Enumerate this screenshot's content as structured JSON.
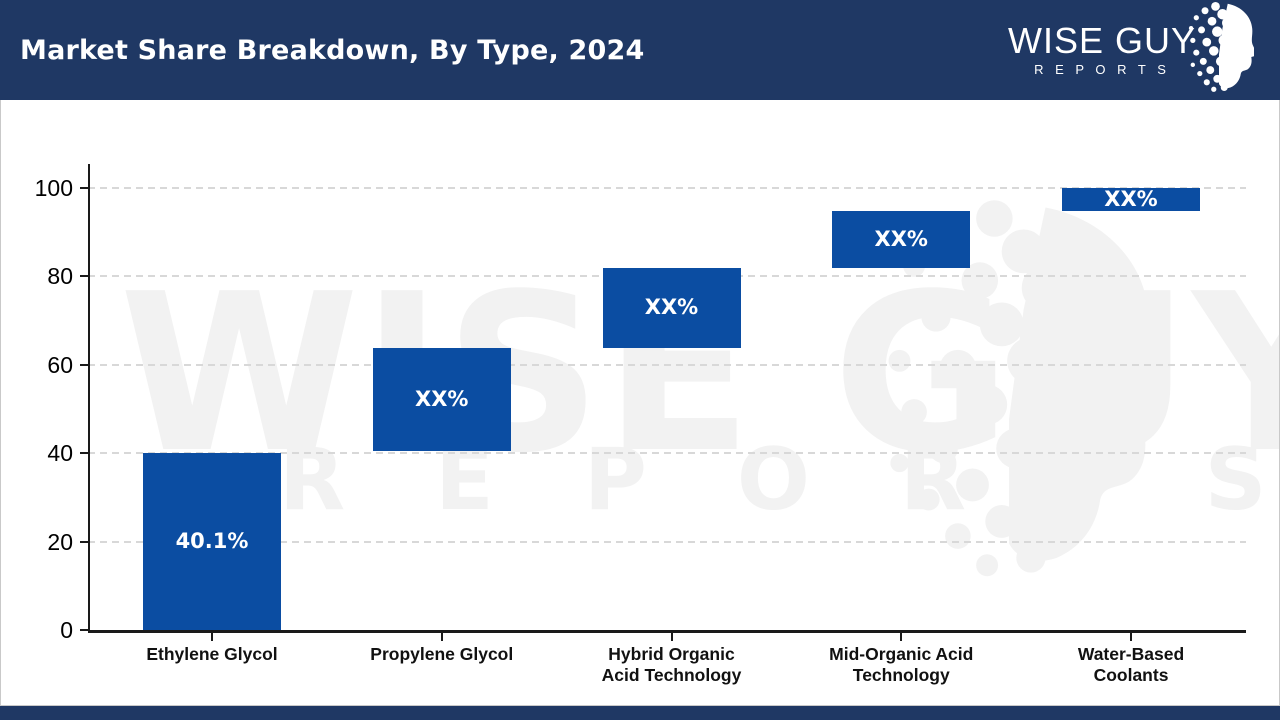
{
  "header": {
    "title": "Market Share Breakdown, By Type, 2024",
    "logo": {
      "line1": "WISE GUY",
      "line2": "R E P O R T S"
    }
  },
  "watermark": {
    "line1": "WISE GUY",
    "line2": "R E P O R T S"
  },
  "chart_data": {
    "type": "bar",
    "subtype": "floating-waterfall",
    "title": "Market Share Breakdown, By Type, 2024",
    "xlabel": "",
    "ylabel": "",
    "ylim": [
      0,
      105
    ],
    "yticks": [
      0,
      20,
      40,
      60,
      80,
      100
    ],
    "grid": "horizontal dashed",
    "legend": "none",
    "categories": [
      [
        "Ethylene Glycol"
      ],
      [
        "Propylene Glycol"
      ],
      [
        "Hybrid Organic",
        "Acid Technology"
      ],
      [
        "Mid-Organic Acid",
        "Technology"
      ],
      [
        "Water-Based",
        "Coolants"
      ]
    ],
    "segments": [
      {
        "category": "Ethylene Glycol",
        "start": 0,
        "end": 40.1,
        "label": "40.1%"
      },
      {
        "category": "Propylene Glycol",
        "start": 40.6,
        "end": 63.8,
        "label": "XX%"
      },
      {
        "category": "Hybrid Organic Acid Technology",
        "start": 63.8,
        "end": 82.0,
        "label": "XX%"
      },
      {
        "category": "Mid-Organic Acid Technology",
        "start": 82.0,
        "end": 94.7,
        "label": "XX%"
      },
      {
        "category": "Water-Based Coolants",
        "start": 94.7,
        "end": 100.1,
        "label": "XX%"
      }
    ],
    "colors": {
      "bar": "#0b4da2",
      "bar_label": "#ffffff",
      "header_bg": "#1f3864",
      "grid": "#d8d8d8",
      "axis": "#1a1a1a",
      "watermark": "#f2f2f2"
    }
  }
}
